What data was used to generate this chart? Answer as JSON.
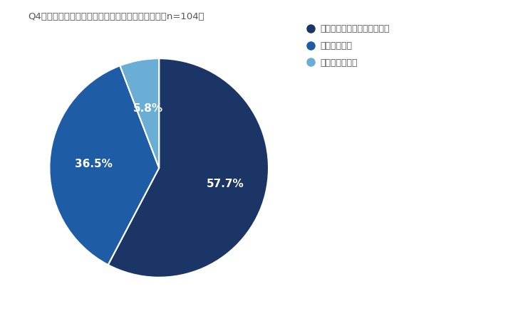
{
  "title": "Q4．賃上げを実施する雇用形態を教えてください（n=104）",
  "slices": [
    57.7,
    36.5,
    5.8
  ],
  "labels": [
    "57.7%",
    "36.5%",
    "5.8%"
  ],
  "colors": [
    "#1a3566",
    "#1e5ca6",
    "#6aadd5"
  ],
  "legend_labels": [
    "正規雇用・非正規雇用の両方",
    "正規雇用のみ",
    "非正規雇用のみ"
  ],
  "legend_colors": [
    "#1a3566",
    "#1e5ca6",
    "#6aadd5"
  ],
  "startangle": 90,
  "background_color": "#ffffff",
  "title_fontsize": 9.5,
  "label_fontsize": 11,
  "legend_fontsize": 9,
  "text_color": "#555555"
}
